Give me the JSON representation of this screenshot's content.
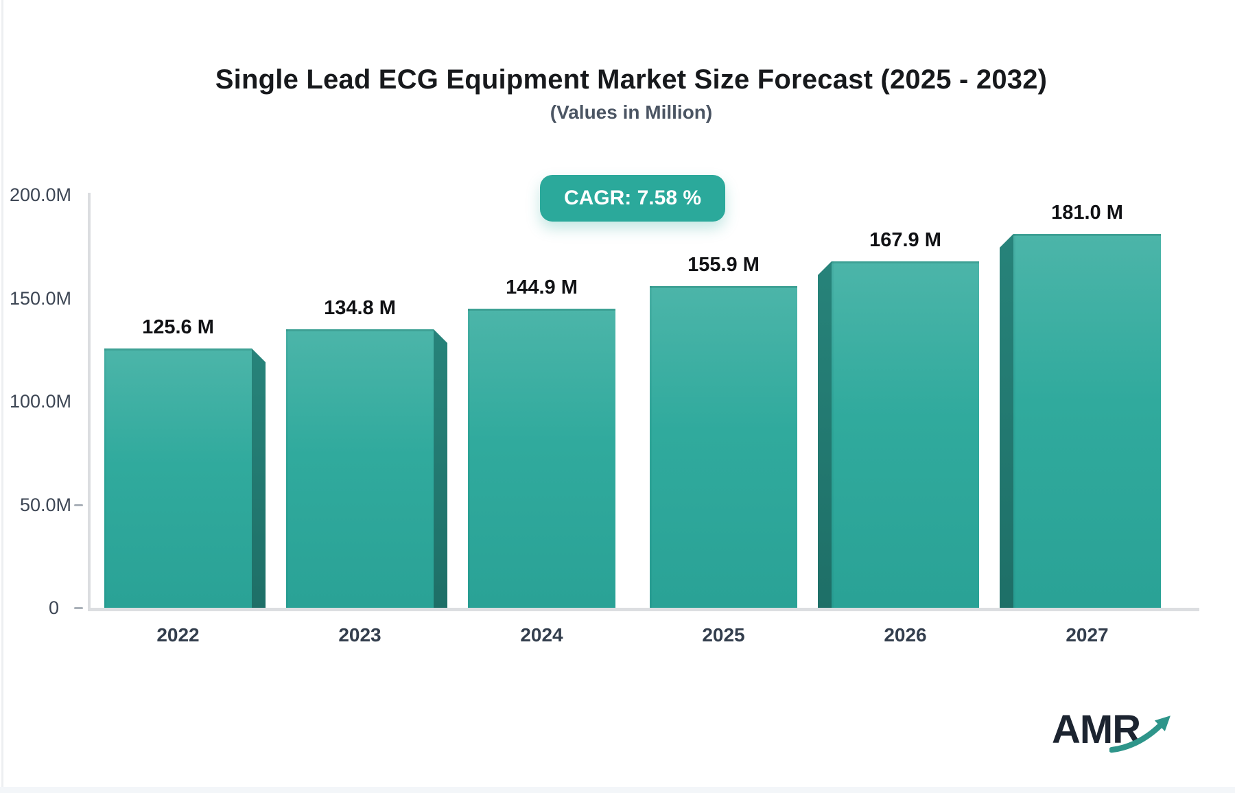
{
  "title": "Single Lead ECG Equipment Market Size Forecast (2025 - 2032)",
  "subtitle": "(Values in Million)",
  "cagr_badge": "CAGR: 7.58 %",
  "logo": {
    "text": "AMR"
  },
  "colors": {
    "accent_teal": "#2ba99b",
    "bar_face_top": "#4cb5a9",
    "bar_face_bottom": "#2aa296",
    "bar_side_dark": "#1f746c",
    "title_text": "#17191c",
    "subtitle_text": "#4b5563",
    "axis_label_text": "#3d4654",
    "category_label_text": "#333e4d",
    "value_label_text": "#101114",
    "axis_line": "#dbdde0",
    "logo_text": "#1c2430",
    "logo_arrow": "#2e958a"
  },
  "chart_data": {
    "type": "bar",
    "categories": [
      "2022",
      "2023",
      "2024",
      "2025",
      "2026",
      "2027"
    ],
    "values": [
      125.6,
      134.8,
      144.9,
      155.9,
      167.9,
      181.0
    ],
    "value_labels": [
      "125.6 M",
      "134.8 M",
      "144.9 M",
      "155.9 M",
      "167.9 M",
      "181.0 M"
    ],
    "title": "Single Lead ECG Equipment Market Size Forecast (2025 - 2032)",
    "subtitle": "(Values in Million)",
    "xlabel": "",
    "ylabel": "",
    "ylim": [
      0,
      200
    ],
    "grid": false,
    "legend": "none",
    "yticks": [
      {
        "label": "200.0M",
        "value": 200,
        "dash": false
      },
      {
        "label": "150.0M",
        "value": 150,
        "dash": false
      },
      {
        "label": "100.0M",
        "value": 100,
        "dash": false
      },
      {
        "label": "50.0M",
        "value": 50,
        "dash": true
      },
      {
        "label": "0",
        "value": 0,
        "dash": true
      }
    ],
    "bar_3d_bevels": [
      "right",
      "right",
      "none",
      "none",
      "left",
      "left"
    ]
  }
}
